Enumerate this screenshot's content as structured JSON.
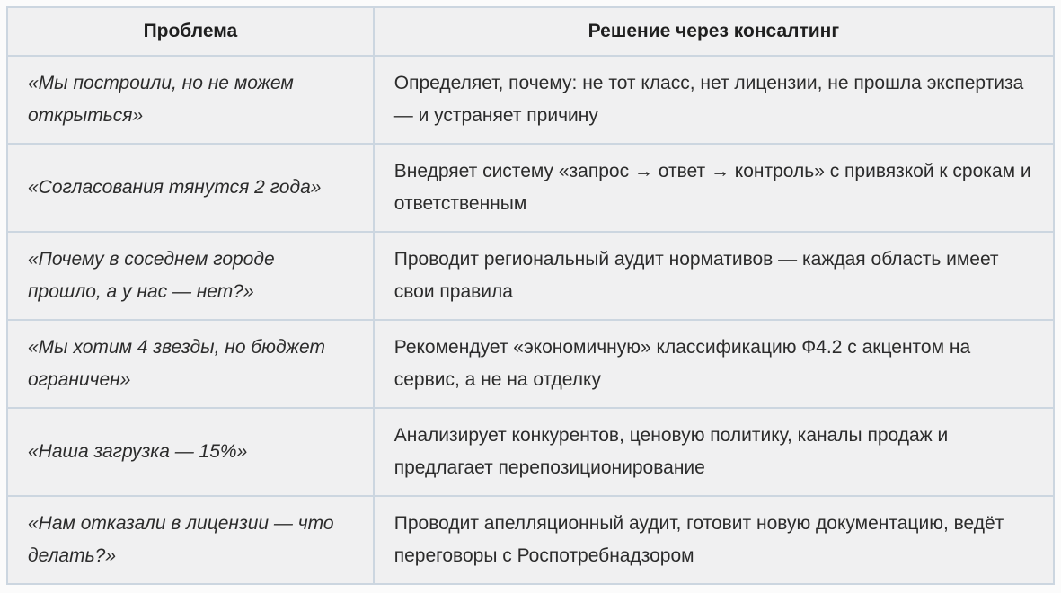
{
  "table": {
    "headers": {
      "problem": "Проблема",
      "solution": "Решение через консалтинг"
    },
    "rows": [
      {
        "problem": "«Мы построили, но не можем открыться»",
        "solution": "Определяет, почему: не тот класс, нет лицензии, не прошла экспертиза — и устраняет причину"
      },
      {
        "problem": "«Согласования тянутся 2 года»",
        "solution": "Внедряет систему «запрос → ответ → контроль» с привязкой к срокам и ответственным"
      },
      {
        "problem": "«Почему в соседнем городе прошло, а у нас — нет?»",
        "solution": "Проводит региональный аудит нормативов — каждая область имеет свои правила"
      },
      {
        "problem": "«Мы хотим 4 звезды, но бюджет ограничен»",
        "solution": "Рекомендует «экономичную» классификацию Ф4.2 с акцентом на сервис, а не на отделку"
      },
      {
        "problem": "«Наша загрузка — 15%»",
        "solution": "Анализирует конкурентов, ценовую политику, каналы продаж и предлагает перепозиционирование"
      },
      {
        "problem": "«Нам отказали в лицензии — что делать?»",
        "solution": "Проводит апелляционный аудит, готовит новую документацию, ведёт переговоры с Роспотребнадзором"
      }
    ],
    "colors": {
      "cell_background": "#f0f0f1",
      "border": "#ccd6e0",
      "text": "#2b2b2b",
      "page_background": "#fbfbfb"
    }
  }
}
